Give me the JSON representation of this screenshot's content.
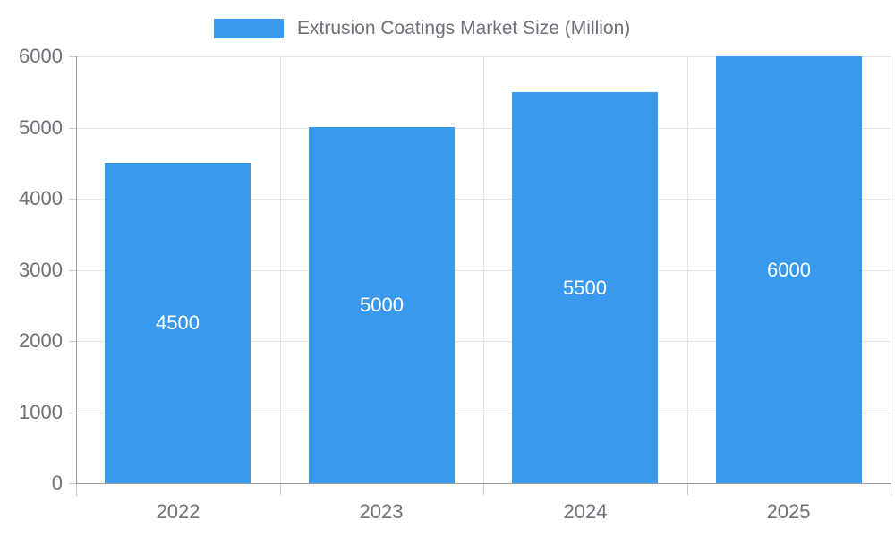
{
  "legend": {
    "label": "Extrusion Coatings Market Size (Million)",
    "swatch_color": "#3999EC"
  },
  "chart_data": {
    "type": "bar",
    "title": "Extrusion Coatings Market Size (Million)",
    "categories": [
      "2022",
      "2023",
      "2024",
      "2025"
    ],
    "values": [
      4500,
      5000,
      5500,
      6000
    ],
    "xlabel": "",
    "ylabel": "",
    "ylim": [
      0,
      6000
    ],
    "ytick_step": 1000,
    "y_tick_labels": [
      "0",
      "1000",
      "2000",
      "3000",
      "4000",
      "5000",
      "6000"
    ],
    "grid": true,
    "legend_position": "top-center",
    "bar_color": "#3999EC",
    "data_label_color": "#ffffff",
    "axis_label_color": "#6e7079"
  }
}
